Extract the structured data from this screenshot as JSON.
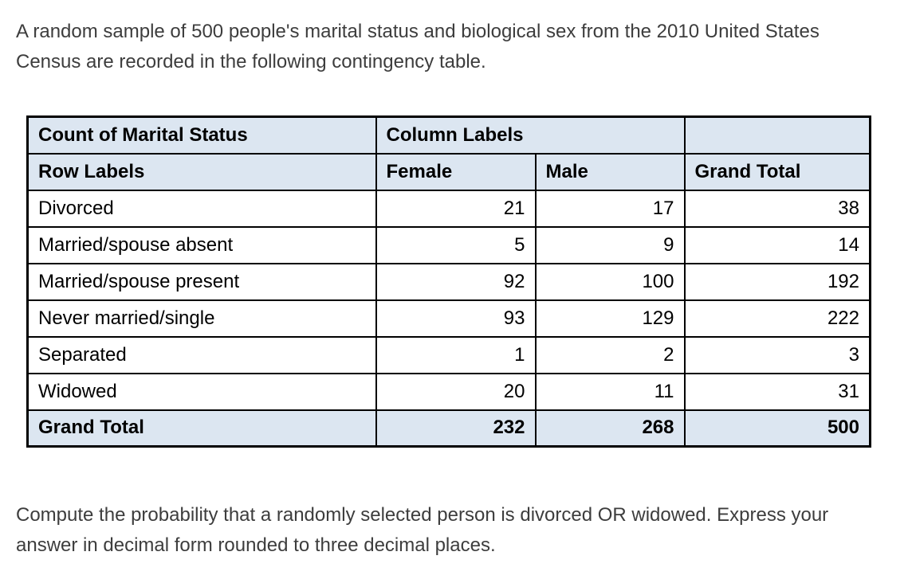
{
  "intro": {
    "text": "A random sample of 500 people's marital status and biological sex from the 2010 United States Census are recorded in the following contingency table."
  },
  "table": {
    "header_row1": {
      "title": "Count of Marital Status",
      "column_labels": "Column Labels",
      "empty": ""
    },
    "header_row2": {
      "row_labels": "Row Labels",
      "female": "Female",
      "male": "Male",
      "grand_total": "Grand Total"
    },
    "rows": [
      {
        "label": "Divorced",
        "female": "21",
        "male": "17",
        "total": "38"
      },
      {
        "label": "Married/spouse absent",
        "female": "5",
        "male": "9",
        "total": "14"
      },
      {
        "label": "Married/spouse present",
        "female": "92",
        "male": "100",
        "total": "192"
      },
      {
        "label": "Never married/single",
        "female": "93",
        "male": "129",
        "total": "222"
      },
      {
        "label": "Separated",
        "female": "1",
        "male": "2",
        "total": "3"
      },
      {
        "label": "Widowed",
        "female": "20",
        "male": "11",
        "total": "31"
      }
    ],
    "total_row": {
      "label": "Grand Total",
      "female": "232",
      "male": "268",
      "total": "500"
    }
  },
  "question": {
    "text": "Compute the probability that a randomly selected person is divorced OR widowed. Express your answer in decimal form rounded to three decimal places."
  },
  "colors": {
    "header_bg": "#dce6f1",
    "border": "#000000",
    "paragraph_text": "#3d3d3d",
    "table_text": "#000000"
  }
}
